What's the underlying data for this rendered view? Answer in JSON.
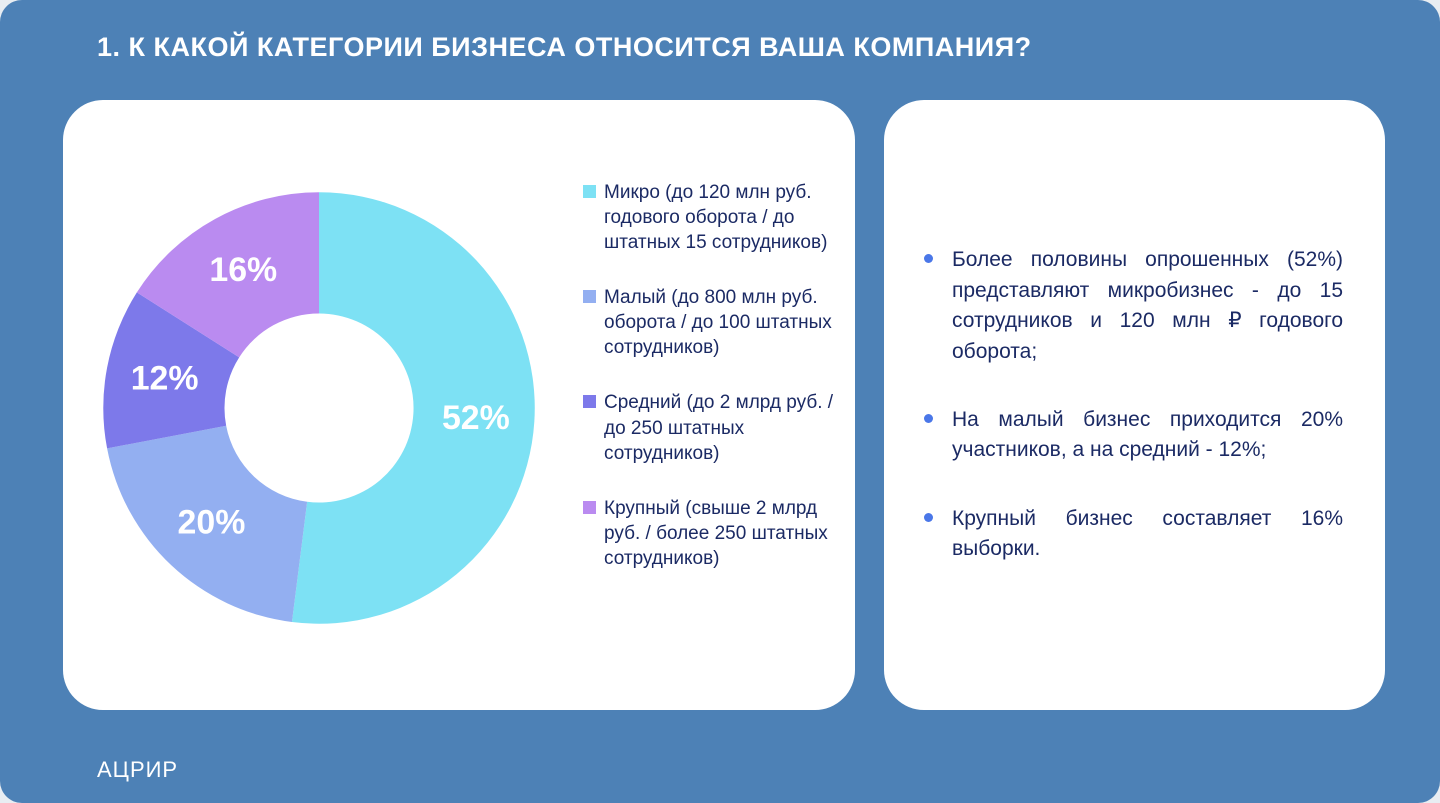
{
  "slide": {
    "title": "1. К КАКОЙ КАТЕГОРИИ БИЗНЕСА ОТНОСИТСЯ ВАША КОМПАНИЯ?",
    "footer": "АЦРИР",
    "colors": {
      "background": "#4d81b6",
      "card": "#ffffff",
      "text_navy": "#1b2a64",
      "title_white": "#ffffff"
    }
  },
  "chart_data": {
    "type": "pie",
    "donut": true,
    "title": "",
    "categories": [
      "Микро (до 120 млн руб. годового оборота / до штатных 15 сотрудников)",
      "Малый (до 800 млн руб. оборота / до 100 штатных сотрудников)",
      "Средний (до 2 млрд руб. / до 250 штатных сотрудников)",
      "Крупный (свыше 2 млрд руб. / более 250 штатных сотрудников)"
    ],
    "values": [
      52,
      20,
      12,
      16
    ],
    "labels": [
      "52%",
      "20%",
      "12%",
      "16%"
    ],
    "colors": [
      "#7de1f4",
      "#93aff1",
      "#7d79ea",
      "#ba8bf0"
    ],
    "legend_position": "right",
    "start_angle_deg": 0,
    "direction": "clockwise",
    "label_color": "#ffffff"
  },
  "insights": {
    "bullet_color": "#4a77e8",
    "bullets": [
      "Более половины опрошенных (52%) представляют микробизнес - до 15 сотрудников и 120 млн ₽ годового оборота;",
      "На малый бизнес приходится 20% участников, а на средний - 12%;",
      "Крупный бизнес составляет 16% выборки."
    ]
  }
}
